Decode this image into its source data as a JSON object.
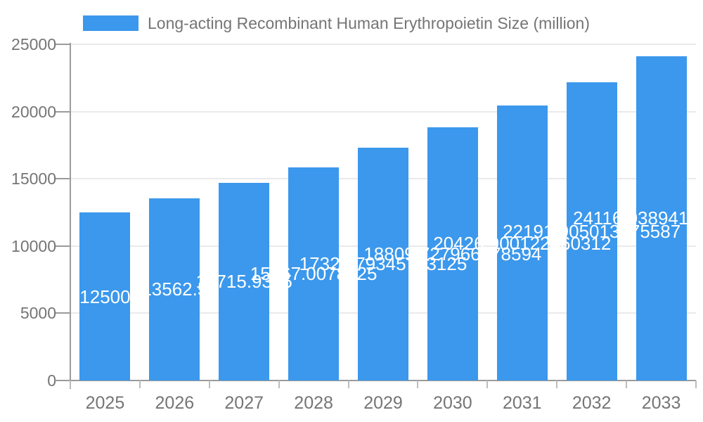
{
  "legend": {
    "label": "Long-acting Recombinant Human Erythropoietin Size (million)"
  },
  "colors": {
    "bar": "#3B98EC",
    "bar_label_text": "#FFFFFF",
    "axis_text": "#757575",
    "grid_line": "#EAEAEA",
    "axis_line": "#9B9B9B",
    "category_tick_line": "#BDBDBD",
    "background": "#FFFFFF"
  },
  "chart_data": {
    "type": "bar",
    "title": "Long-acting Recombinant Human Erythropoietin Size (million)",
    "categories": [
      "2025",
      "2026",
      "2027",
      "2028",
      "2029",
      "2030",
      "2031",
      "2032",
      "2033"
    ],
    "values": [
      12500,
      13562.5,
      14715.9375,
      15867.0078125,
      17322.79345703125,
      18809.727966578594,
      20426.900122460313,
      22191.905013175587,
      24116.038941756586
    ],
    "value_labels": [
      "12500",
      "13562.5",
      "14715.9375",
      "15867.0078125",
      "17322.79345703125",
      "18809.727966578594",
      "20426.900122460312",
      "22191.905013175587",
      "24116.038941756587"
    ],
    "xlabel": "",
    "ylabel": "",
    "ylim": [
      0,
      25000
    ],
    "yticks": [
      0,
      5000,
      10000,
      15000,
      20000,
      25000
    ],
    "grid": true,
    "legend_position": "top",
    "value_label_position": "middle-of-bar"
  }
}
